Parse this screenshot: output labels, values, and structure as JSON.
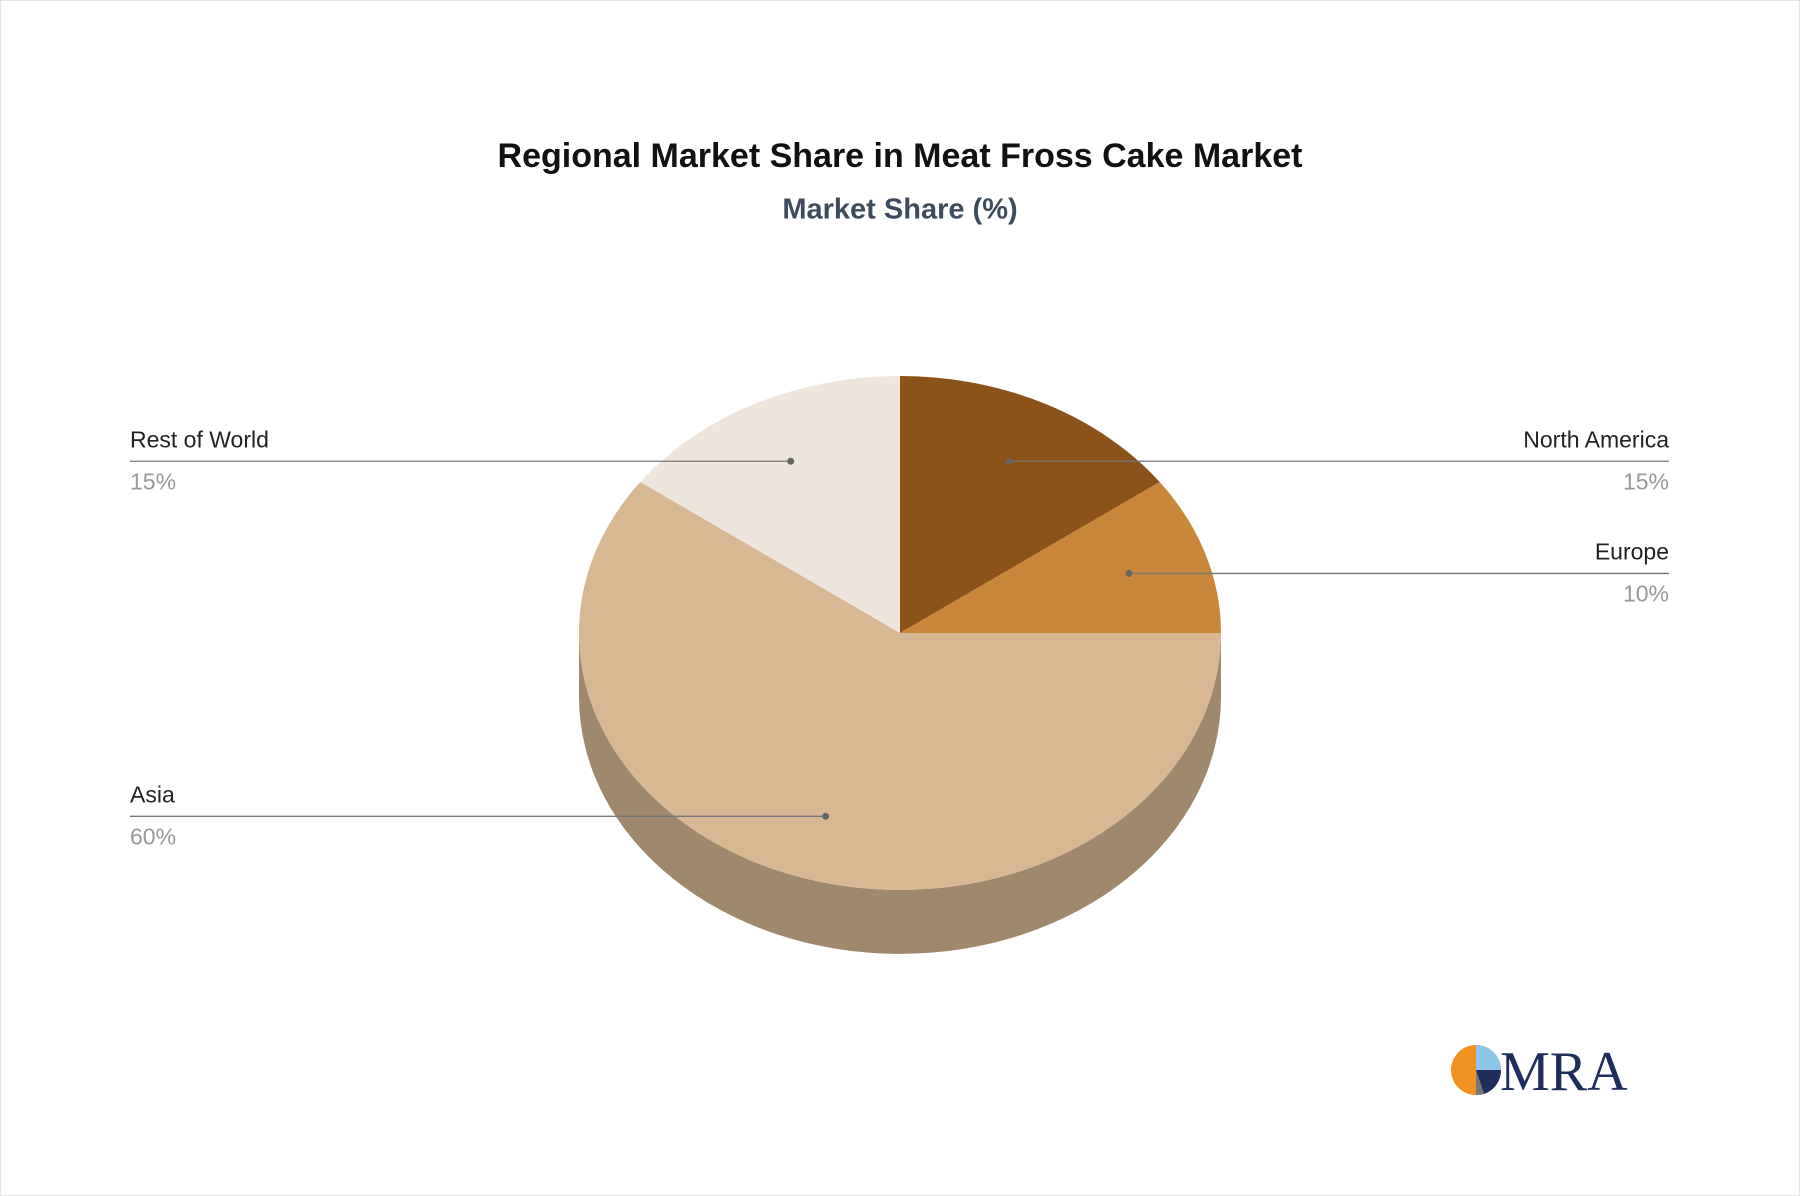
{
  "chart_data": {
    "type": "pie3d",
    "title": "Regional Market Share in Meat Fross Cake Market",
    "subtitle": "Market Share (%)",
    "categories": [
      "North America",
      "Europe",
      "Asia",
      "Rest of World"
    ],
    "values": [
      15,
      10,
      60,
      15
    ],
    "value_labels": [
      "15%",
      "10%",
      "60%",
      "15%"
    ],
    "colors": [
      "#8b5219",
      "#c8873a",
      "#d8b892",
      "#eee5dc"
    ]
  },
  "logo": "MRA"
}
